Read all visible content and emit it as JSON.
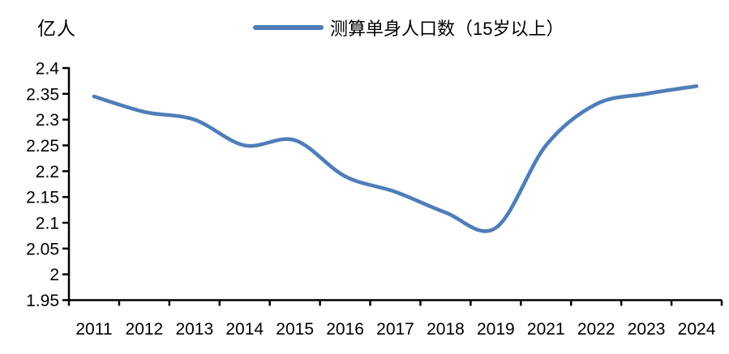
{
  "chart": {
    "unit_label": "亿人",
    "legend": {
      "label": "测算单身人口数（15岁以上）",
      "marker_color": "#4f7db8"
    }
  },
  "chart_data": {
    "type": "line",
    "title": "",
    "categories": [
      "2011",
      "2012",
      "2013",
      "2014",
      "2015",
      "2016",
      "2017",
      "2018",
      "2019",
      "2021",
      "2022",
      "2023",
      "2024"
    ],
    "series": [
      {
        "name": "测算单身人口数（15岁以上）",
        "values": [
          2.345,
          2.315,
          2.3,
          2.25,
          2.26,
          2.19,
          2.16,
          2.12,
          2.09,
          2.25,
          2.33,
          2.35,
          2.365
        ]
      }
    ],
    "xlabel": "",
    "ylabel": "亿人",
    "ylim": [
      1.95,
      2.4
    ],
    "ytick_step": 0.05,
    "ytick_labels_top_to_bottom": [
      "2.4",
      "2.35",
      "2.3",
      "2.25",
      "2.2",
      "2.15",
      "2.1",
      "2.05",
      "2",
      "1.95"
    ],
    "line_color": "#4f7db8",
    "axis_color": "#000000",
    "smooth": true,
    "grid": false,
    "legend_position": "top"
  }
}
